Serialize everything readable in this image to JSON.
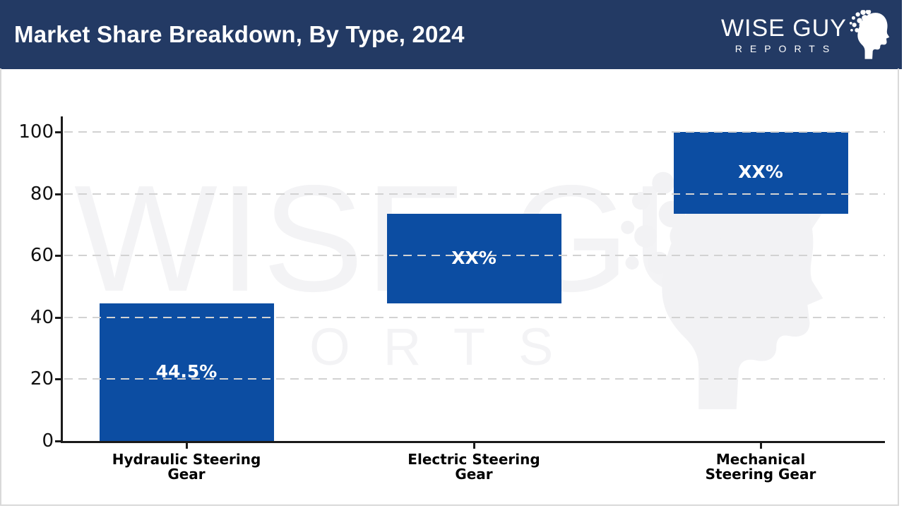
{
  "page": {
    "background": "#ffffff",
    "frame_color": "#d9d9d9"
  },
  "header": {
    "background": "#233a64",
    "title": "Market Share Breakdown, By Type, 2024",
    "logo": {
      "line1": "WISE GUY",
      "line2": "REPORTS"
    }
  },
  "watermark": {
    "line1": "WISE GUY",
    "line2": "REPORTS"
  },
  "chart_data": {
    "type": "bar",
    "subtype": "waterfall",
    "title": "Market Share Breakdown, By Type, 2024",
    "categories": [
      "Hydraulic Steering Gear",
      "Electric Steering Gear",
      "Mechanical Steering Gear"
    ],
    "category_lines": [
      [
        "Hydraulic Steering",
        "Gear"
      ],
      [
        "Electric Steering",
        "Gear"
      ],
      [
        "Mechanical",
        "Steering Gear"
      ]
    ],
    "segments": [
      {
        "category": "Hydraulic Steering Gear",
        "start": 0,
        "end": 44.5,
        "label": "44.5%"
      },
      {
        "category": "Electric Steering Gear",
        "start": 44.5,
        "end": 73.5,
        "label": "XX%"
      },
      {
        "category": "Mechanical Steering Gear",
        "start": 73.5,
        "end": 100,
        "label": "XX%"
      }
    ],
    "yticks": [
      0,
      20,
      40,
      60,
      80,
      100
    ],
    "ylim": [
      0,
      105
    ],
    "xlabel": "",
    "ylabel": "",
    "legend": "none",
    "grid": "horizontal-dashed",
    "grid_over_bars": true,
    "bar_color": "#0c4da2",
    "bar_label_color": "#ffffff",
    "axis_color": "#1a1a1a",
    "gridline_color": "#d2d2d2",
    "tick_label_color": "#111111"
  }
}
